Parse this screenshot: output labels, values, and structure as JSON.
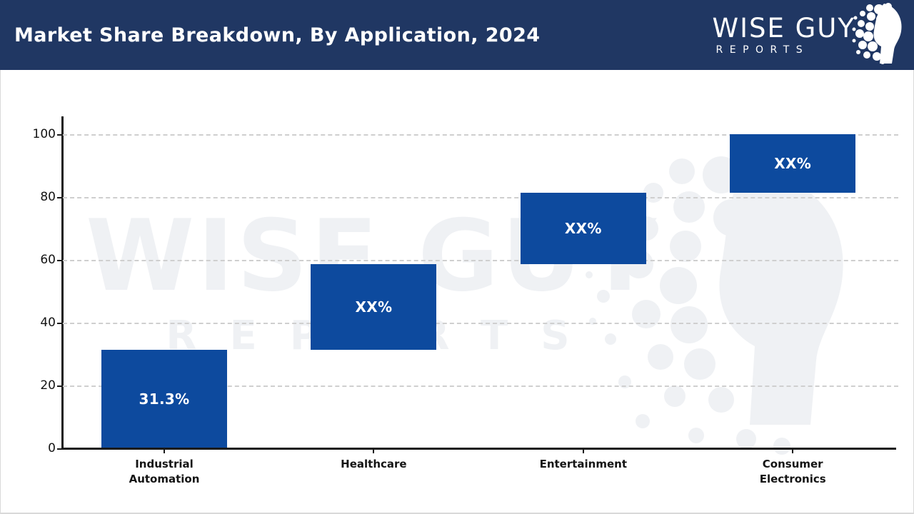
{
  "header": {
    "title": "Market Share Breakdown, By Application, 2024",
    "logo": {
      "line1": "WISE GUY",
      "line2": "REPORTS"
    }
  },
  "watermark": {
    "line1": "WISE GUY",
    "line2": "REPORTS"
  },
  "colors": {
    "header_bg": "#203763",
    "bar_blue": "#0d4a9e",
    "grid_gray": "#cfcfcf",
    "watermark_gray": "#eff1f4",
    "axis_black": "#1a1a1a"
  },
  "chart_data": {
    "type": "bar",
    "subtype": "waterfall-stacked",
    "title": "Market Share Breakdown, By Application, 2024",
    "categories": [
      "Industrial\nAutomation",
      "Healthcare",
      "Entertainment",
      "Consumer\nElectronics"
    ],
    "segments": [
      {
        "category": "Industrial Automation",
        "start": 0,
        "end": 31.3,
        "label": "31.3%"
      },
      {
        "category": "Healthcare",
        "start": 31.3,
        "end": 58.5,
        "label": "XX%"
      },
      {
        "category": "Entertainment",
        "start": 58.5,
        "end": 81.3,
        "label": "XX%"
      },
      {
        "category": "Consumer Electronics",
        "start": 81.3,
        "end": 100,
        "label": "XX%"
      }
    ],
    "xlabel": "",
    "ylabel": "",
    "yticks": [
      0,
      20,
      40,
      60,
      80,
      100
    ],
    "ylim": [
      0,
      105.5
    ],
    "grid": "horizontal-dashed",
    "legend": "none",
    "bar_color": "#0d4a9e",
    "bar_label_color": "#ffffff"
  }
}
